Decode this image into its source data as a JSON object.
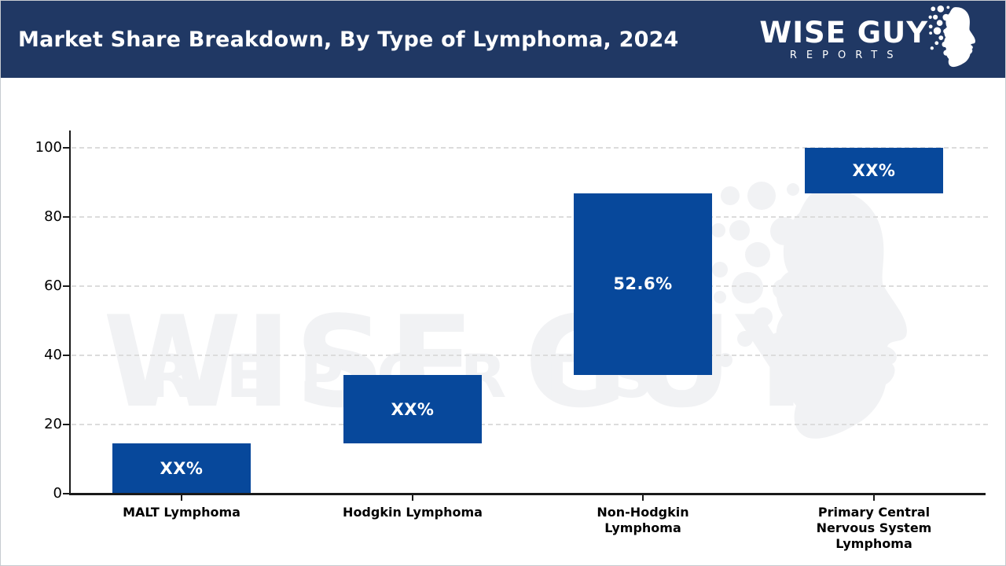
{
  "header": {
    "title": "Market Share Breakdown, By Type of Lymphoma, 2024",
    "brand": {
      "name_top": "WISE GUY",
      "name_bottom": "REPORTS"
    }
  },
  "watermark": {
    "text_top": "WISE GUY",
    "text_bottom": "REPORTS"
  },
  "colors": {
    "header_bg": "#203864",
    "bar_fill": "#07489B",
    "bar_label": "#ffffff",
    "gridline": "#dcdcdc",
    "axis": "#1a1a1a",
    "watermark": "#f1f2f4"
  },
  "chart_data": {
    "type": "bar",
    "variant": "floating-waterfall",
    "title": "Market Share Breakdown, By Type of Lymphoma, 2024",
    "xlabel": "",
    "ylabel": "",
    "ylim": [
      0,
      100
    ],
    "yticks": [
      0,
      20,
      40,
      60,
      80,
      100
    ],
    "grid": {
      "horizontal": true,
      "style": "dashed"
    },
    "legend": "none",
    "categories": [
      "MALT Lymphoma",
      "Hodgkin Lymphoma",
      "Non-Hodgkin Lymphoma",
      "Primary Central Nervous System Lymphoma"
    ],
    "category_lines": [
      [
        "MALT Lymphoma"
      ],
      [
        "Hodgkin Lymphoma"
      ],
      [
        "Non-Hodgkin",
        "Lymphoma"
      ],
      [
        "Primary Central",
        "Nervous System",
        "Lymphoma"
      ]
    ],
    "bars": [
      {
        "category": "MALT Lymphoma",
        "label": "XX%",
        "start": 0,
        "end": 14.5
      },
      {
        "category": "Hodgkin Lymphoma",
        "label": "XX%",
        "start": 14.5,
        "end": 34.3
      },
      {
        "category": "Non-Hodgkin Lymphoma",
        "label": "52.6%",
        "start": 34.3,
        "end": 86.9,
        "value": 52.6
      },
      {
        "category": "Primary Central Nervous System Lymphoma",
        "label": "XX%",
        "start": 86.9,
        "end": 99.9
      }
    ]
  }
}
